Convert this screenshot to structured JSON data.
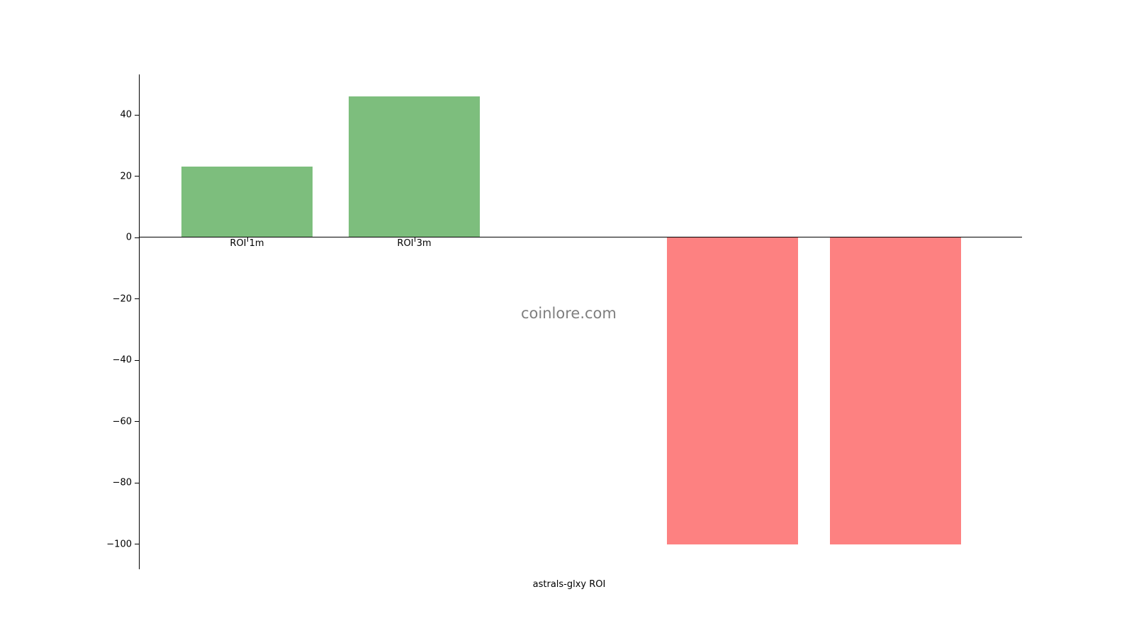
{
  "chart_data": {
    "type": "bar",
    "title": "",
    "xlabel": "astrals-glxy ROI",
    "ylabel": "",
    "watermark": "coinlore.com",
    "bars": [
      {
        "label": "ROI 1m",
        "value": 23,
        "color": "#7dbe7d"
      },
      {
        "label": "ROI 3m",
        "value": 46,
        "color": "#7dbe7d"
      },
      {
        "label": "",
        "value": 0,
        "color": null
      },
      {
        "label": "",
        "value": -100,
        "color": "#fd8181"
      },
      {
        "label": "",
        "value": -100,
        "color": "#fd8181"
      }
    ],
    "ytick_values": [
      40,
      20,
      0,
      -20,
      -40,
      -60,
      -80,
      -100
    ],
    "ytick_labels": [
      "40",
      "20",
      "0",
      "−20",
      "−40",
      "−60",
      "−80",
      "−100"
    ],
    "ylim": [
      -108,
      53
    ],
    "grid": false,
    "legend": null,
    "positive_color": "#7dbe7d",
    "negative_color": "#fd8181",
    "axis_color": "#000000",
    "watermark_color": "#7f7f7f"
  }
}
